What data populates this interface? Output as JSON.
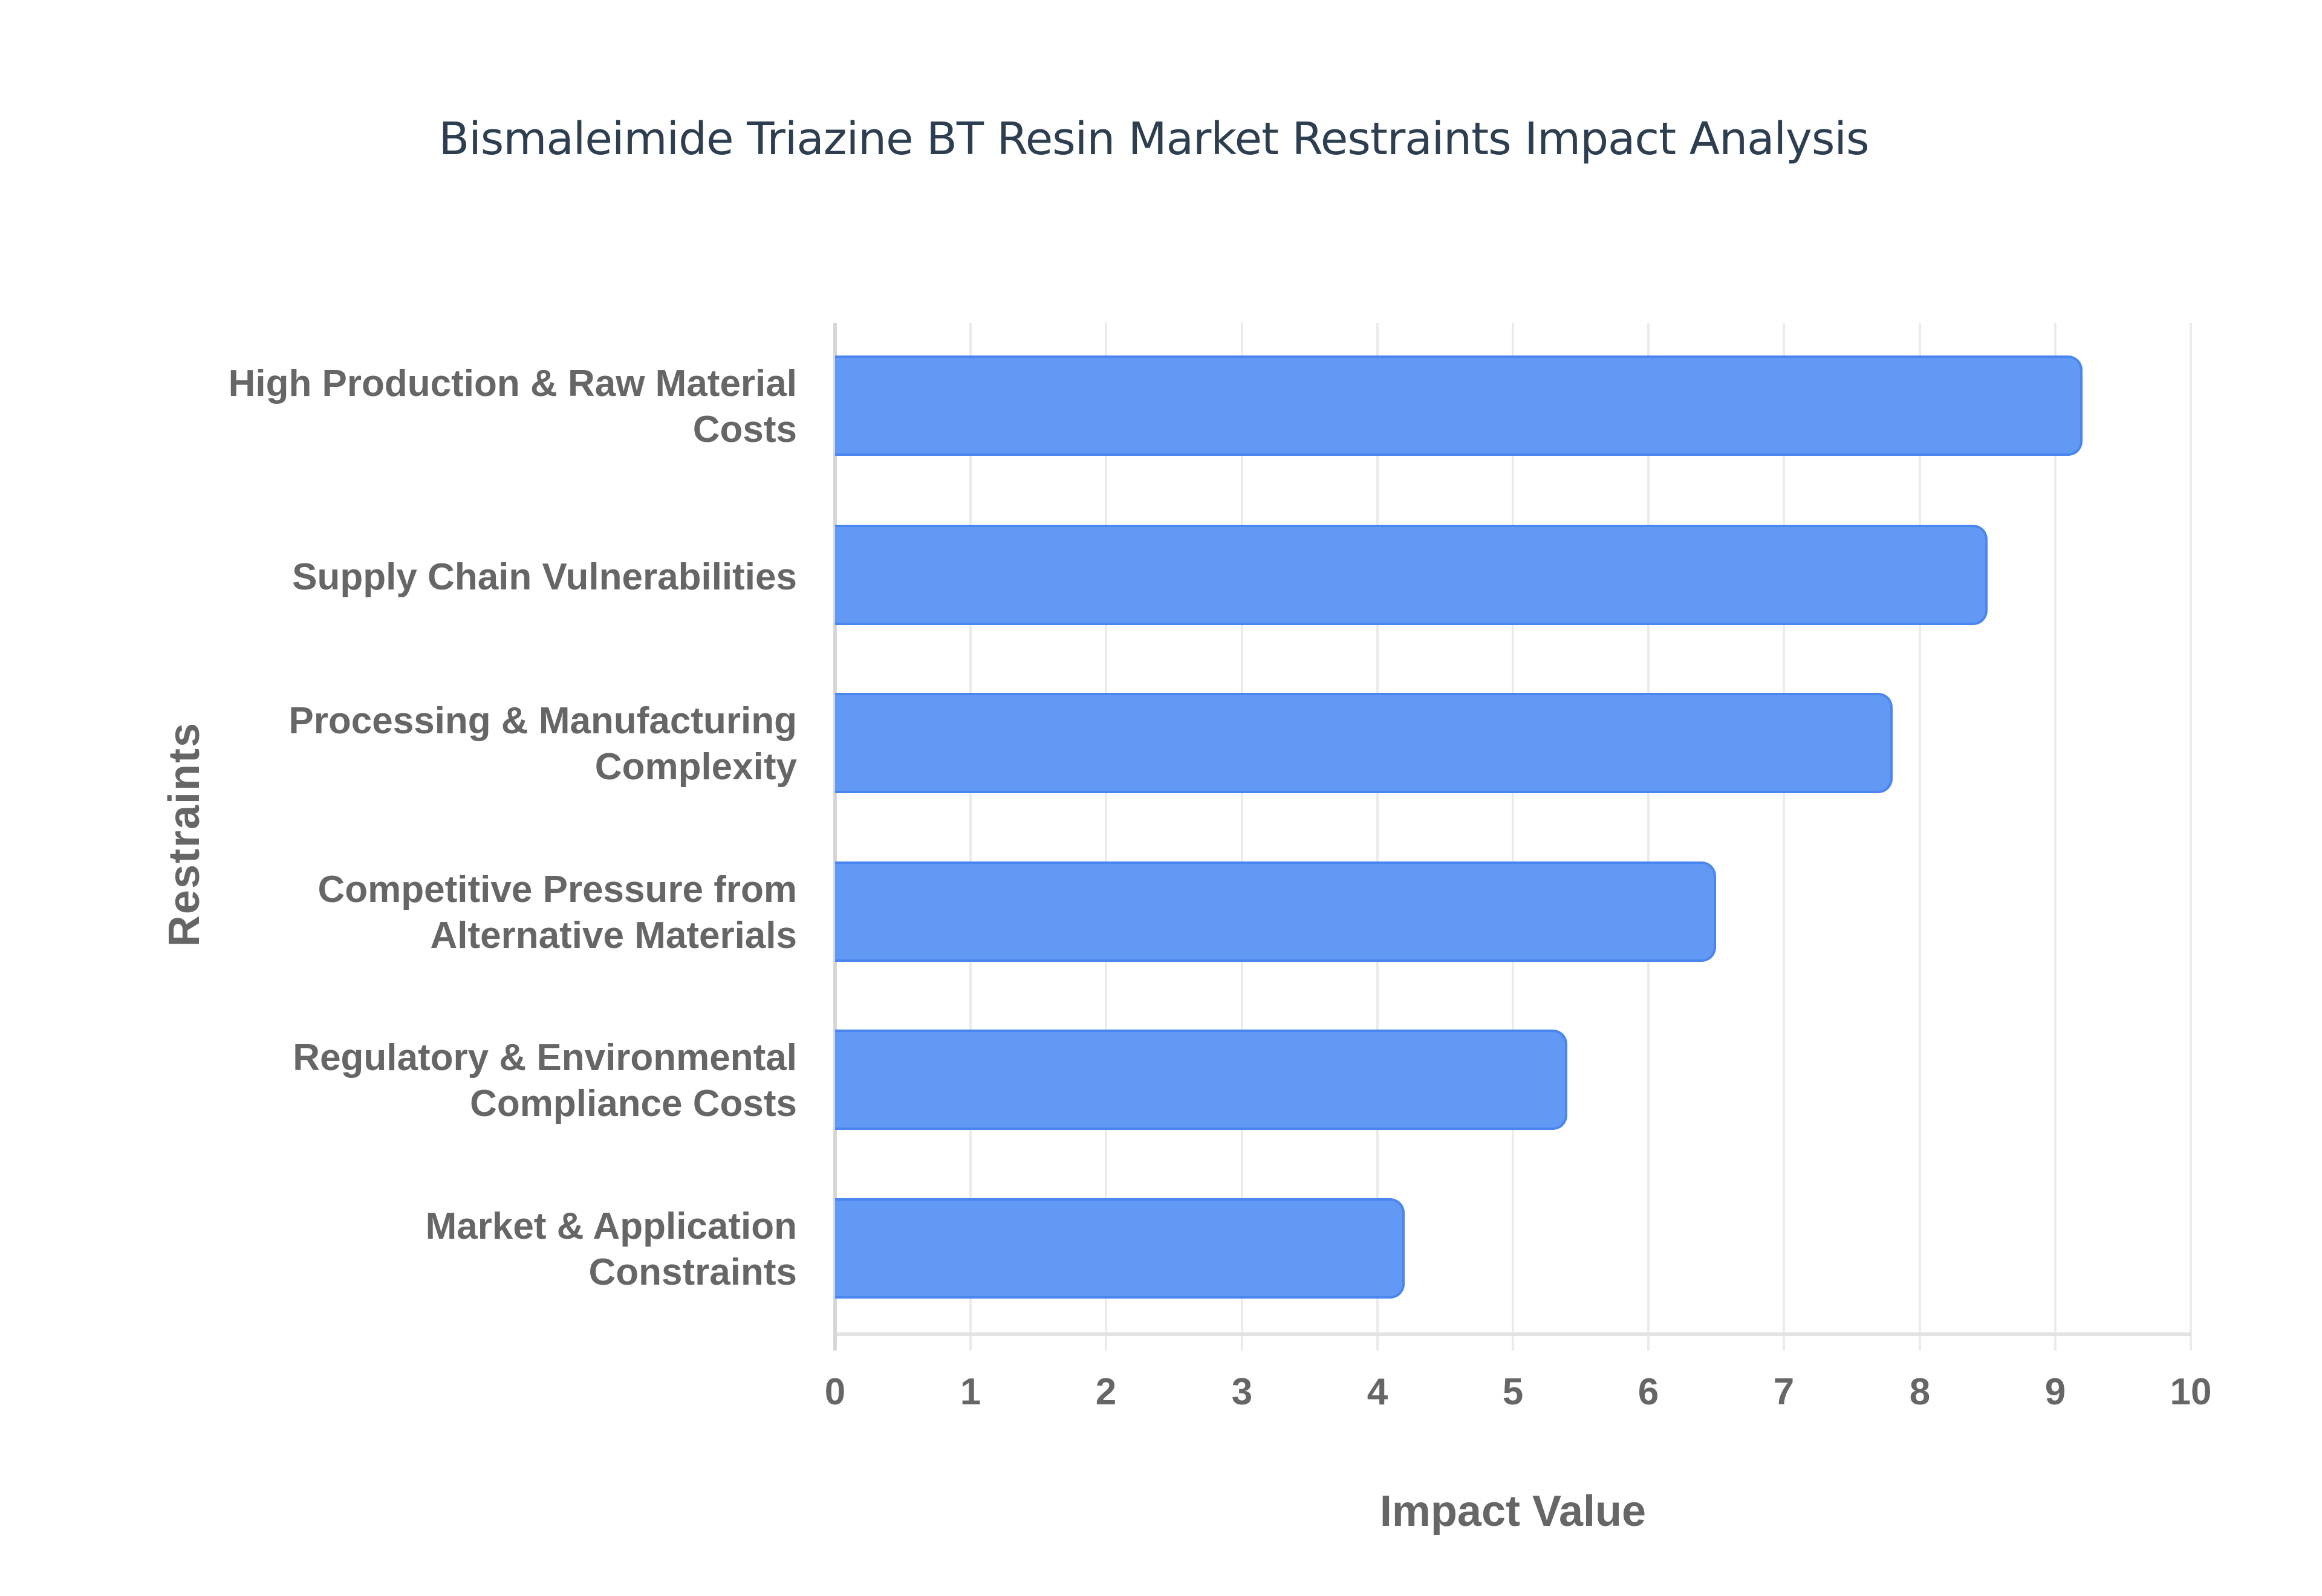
{
  "title": "Bismaleimide Triazine BT Resin Market Restraints Impact Analysis",
  "colors": {
    "bar_fill": "#6199f5",
    "bar_border": "#4a86f0",
    "title": "#2c3e50",
    "axis_text": "#666666",
    "gridline": "#ebebeb"
  },
  "chart_data": {
    "type": "bar",
    "orientation": "horizontal",
    "title": "Bismaleimide Triazine BT Resin Market Restraints Impact Analysis",
    "xlabel": "Impact Value",
    "ylabel": "Restraints",
    "xlim": [
      0,
      10
    ],
    "x_ticks": [
      "0",
      "1",
      "2",
      "3",
      "4",
      "5",
      "6",
      "7",
      "8",
      "9",
      "10"
    ],
    "grid": true,
    "legend": null,
    "categories": [
      "High Production & Raw Material Costs",
      "Supply Chain Vulnerabilities",
      "Processing & Manufacturing Complexity",
      "Competitive Pressure from Alternative Materials",
      "Regulatory & Environmental Compliance Costs",
      "Market & Application Constraints"
    ],
    "values": [
      9.2,
      8.5,
      7.8,
      6.5,
      5.4,
      4.2
    ],
    "series": [
      {
        "name": "Impact Value",
        "values": [
          9.2,
          8.5,
          7.8,
          6.5,
          5.4,
          4.2
        ]
      }
    ]
  },
  "bars": [
    {
      "line1": "High Production & Raw Material",
      "line2": "Costs",
      "value": 9.2
    },
    {
      "line1": "Supply Chain Vulnerabilities",
      "line2": "",
      "value": 8.5
    },
    {
      "line1": "Processing & Manufacturing",
      "line2": "Complexity",
      "value": 7.8
    },
    {
      "line1": "Competitive Pressure from",
      "line2": "Alternative Materials",
      "value": 6.5
    },
    {
      "line1": "Regulatory & Environmental",
      "line2": "Compliance Costs",
      "value": 5.4
    },
    {
      "line1": "Market & Application",
      "line2": "Constraints",
      "value": 4.2
    }
  ],
  "axes": {
    "x_title": "Impact Value",
    "y_title": "Restraints",
    "ticks": [
      "0",
      "1",
      "2",
      "3",
      "4",
      "5",
      "6",
      "7",
      "8",
      "9",
      "10"
    ]
  }
}
